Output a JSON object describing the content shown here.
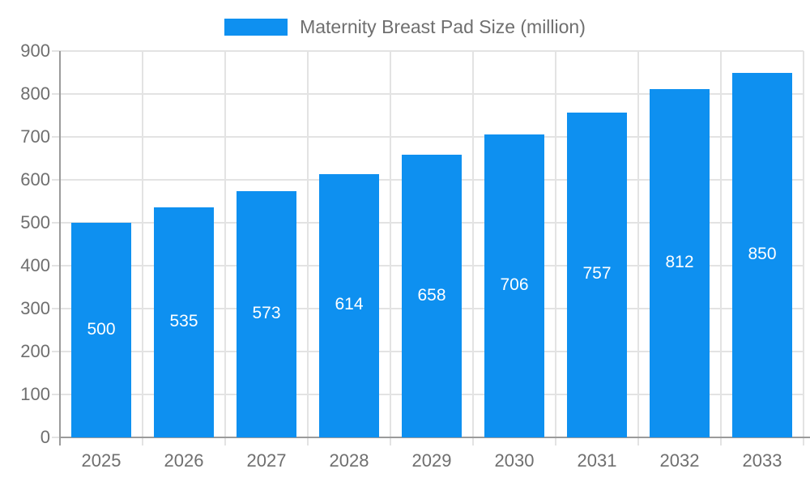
{
  "chart_data": {
    "type": "bar",
    "title": "Maternity Breast Pad Size (million)",
    "legend": {
      "label": "Maternity Breast Pad Size (million)",
      "position": "top"
    },
    "categories": [
      "2025",
      "2026",
      "2027",
      "2028",
      "2029",
      "2030",
      "2031",
      "2032",
      "2033"
    ],
    "values": [
      500,
      535,
      573,
      614,
      658,
      706,
      757,
      812,
      850
    ],
    "value_labels": [
      "500",
      "535",
      "573",
      "614",
      "658",
      "706",
      "757",
      "812",
      "850"
    ],
    "xlabel": "",
    "ylabel": "",
    "ylim": [
      0,
      900
    ],
    "yticks": [
      0,
      100,
      200,
      300,
      400,
      500,
      600,
      700,
      800,
      900
    ],
    "grid": "horizontal and vertical",
    "colors": {
      "bar": "#0e90f0",
      "grid": "#e3e3e3",
      "axis": "#9b9b9b",
      "text": "#6f6f6f",
      "value_text": "#ffffff",
      "background": "#ffffff"
    }
  }
}
